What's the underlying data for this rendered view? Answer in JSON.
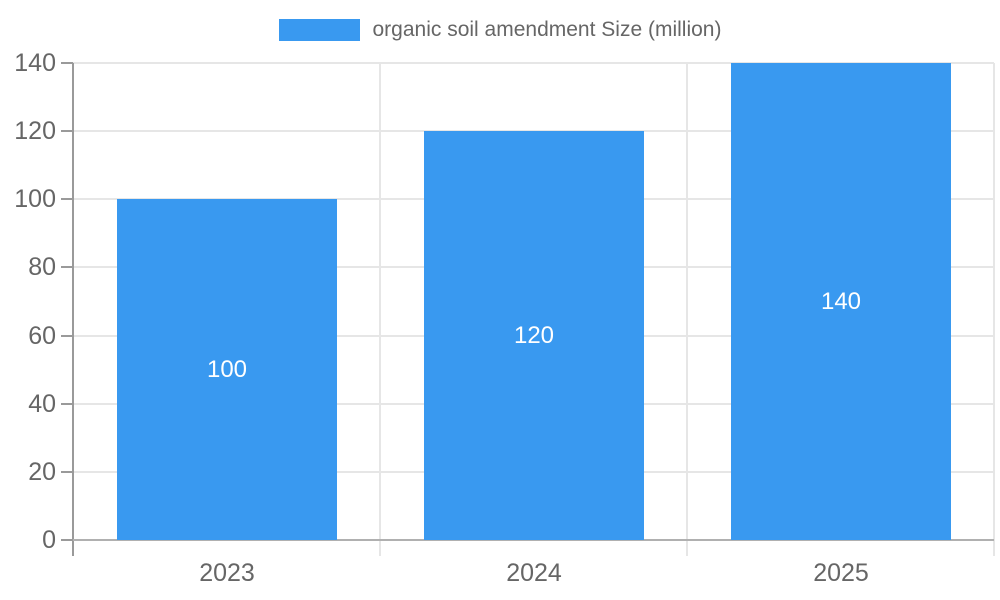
{
  "legend": {
    "label": "organic soil amendment Size (million)"
  },
  "chart_data": {
    "type": "bar",
    "title": "organic soil amendment Size (million)",
    "categories": [
      "2023",
      "2024",
      "2025"
    ],
    "series": [
      {
        "name": "organic soil amendment Size (million)",
        "values": [
          100,
          120,
          140
        ]
      }
    ],
    "data_labels": [
      "100",
      "120",
      "140"
    ],
    "xlabel": "",
    "ylabel": "",
    "ylim": [
      0,
      140
    ],
    "ytick_interval": 20,
    "yticks": [
      0,
      20,
      40,
      60,
      80,
      100,
      120,
      140
    ],
    "grid": true,
    "legend_position": "top",
    "colors": {
      "bar": "#3999f0",
      "grid": "#e6e6e6",
      "axis_line": "#9a9a9a",
      "baseline": "#b0b0b0",
      "text": "#666666",
      "data_label": "#ffffff",
      "background": "#ffffff"
    }
  }
}
